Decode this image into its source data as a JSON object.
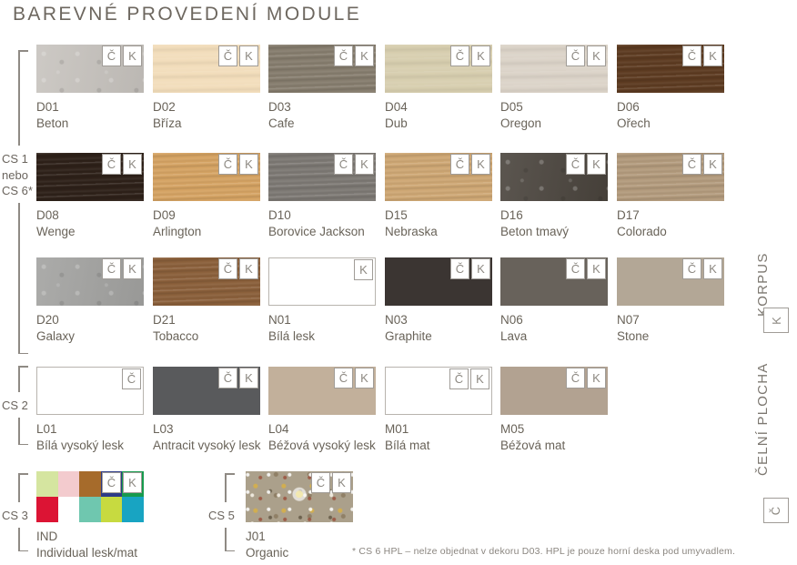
{
  "title": "BAREVNÉ PROVEDENÍ MODULE",
  "legend": {
    "korpus_label": "KORPUS",
    "korpus_badge": "K",
    "front_label": "ČELNÍ PLOCHA",
    "front_badge": "Č"
  },
  "groups": {
    "cs1": {
      "lines": [
        "CS 1",
        "nebo",
        "CS 6*"
      ]
    },
    "cs2": {
      "lines": [
        "CS 2"
      ]
    },
    "cs3": {
      "lines": [
        "CS 3"
      ]
    },
    "cs5": {
      "lines": [
        "CS 5"
      ]
    }
  },
  "rows": [
    {
      "swatches": [
        {
          "code": "D01",
          "name": "Beton",
          "badges": [
            "Č",
            "K"
          ],
          "color": "#c7c3be",
          "texture": "concrete"
        },
        {
          "code": "D02",
          "name": "Bříza",
          "badges": [
            "Č",
            "K"
          ],
          "color": "#f2ddbb",
          "texture": "wood-soft"
        },
        {
          "code": "D03",
          "name": "Cafe",
          "badges": [
            "Č",
            "K"
          ],
          "color": "#867d6e",
          "texture": "wood"
        },
        {
          "code": "D04",
          "name": "Dub",
          "badges": [
            "Č",
            "K"
          ],
          "color": "#d7ceaf",
          "texture": "wood-soft"
        },
        {
          "code": "D05",
          "name": "Oregon",
          "badges": [
            "Č",
            "K"
          ],
          "color": "#dbd3c8",
          "texture": "wood-soft"
        },
        {
          "code": "D06",
          "name": "Ořech",
          "badges": [
            "Č",
            "K"
          ],
          "color": "#5d3b21",
          "texture": "wood"
        }
      ]
    },
    {
      "swatches": [
        {
          "code": "D08",
          "name": "Wenge",
          "badges": [
            "Č",
            "K"
          ],
          "color": "#2e2119",
          "texture": "wood"
        },
        {
          "code": "D09",
          "name": "Arlington",
          "badges": [
            "Č",
            "K"
          ],
          "color": "#d5a363",
          "texture": "wood"
        },
        {
          "code": "D10",
          "name": "Borovice Jackson",
          "badges": [
            "Č",
            "K"
          ],
          "color": "#7d7974",
          "texture": "wood"
        },
        {
          "code": "D15",
          "name": "Nebraska",
          "badges": [
            "Č",
            "K"
          ],
          "color": "#cea774",
          "texture": "wood"
        },
        {
          "code": "D16",
          "name": "Beton tmavý",
          "badges": [
            "Č",
            "K"
          ],
          "color": "#49433c",
          "texture": "concrete"
        },
        {
          "code": "D17",
          "name": "Colorado",
          "badges": [
            "Č",
            "K"
          ],
          "color": "#b39b7d",
          "texture": "wood"
        }
      ]
    },
    {
      "swatches": [
        {
          "code": "D20",
          "name": "Galaxy",
          "badges": [
            "Č",
            "K"
          ],
          "color": "#a2a2a0",
          "texture": "concrete"
        },
        {
          "code": "D21",
          "name": "Tobacco",
          "badges": [
            "Č",
            "K"
          ],
          "color": "#8b603b",
          "texture": "wood"
        },
        {
          "code": "N01",
          "name": "Bílá lesk",
          "badges": [
            "K"
          ],
          "color": "#ffffff",
          "texture": "white"
        },
        {
          "code": "N03",
          "name": "Graphite",
          "badges": [
            "Č",
            "K"
          ],
          "color": "#3b3532",
          "texture": "flat"
        },
        {
          "code": "N06",
          "name": "Lava",
          "badges": [
            "Č",
            "K"
          ],
          "color": "#68625b",
          "texture": "flat"
        },
        {
          "code": "N07",
          "name": "Stone",
          "badges": [
            "Č",
            "K"
          ],
          "color": "#b3a796",
          "texture": "flat"
        }
      ]
    },
    {
      "swatches": [
        {
          "code": "L01",
          "name": "Bílá vysoký lesk",
          "badges": [
            "Č"
          ],
          "color": "#ffffff",
          "texture": "white"
        },
        {
          "code": "L03",
          "name": "Antracit vysoký lesk",
          "badges": [
            "Č",
            "K"
          ],
          "color": "#595a5c",
          "texture": "flat"
        },
        {
          "code": "L04",
          "name": "Béžová vysoký lesk",
          "badges": [
            "Č",
            "K"
          ],
          "color": "#c2b09b",
          "texture": "flat"
        },
        {
          "code": "M01",
          "name": "Bílá mat",
          "badges": [
            "Č",
            "K"
          ],
          "color": "#ffffff",
          "texture": "white"
        },
        {
          "code": "M05",
          "name": "Béžová mat",
          "badges": [
            "Č",
            "K"
          ],
          "color": "#b2a291",
          "texture": "flat"
        }
      ]
    },
    {
      "swatches": [
        {
          "code": "IND",
          "name": "Individual lesk/mat",
          "badges": [
            "Č",
            "K"
          ],
          "color": "#ffffff",
          "texture": "grid"
        },
        {
          "code": "J01",
          "name": "Organic",
          "badges": [
            "Č",
            "K"
          ],
          "color": "#aba08b",
          "texture": "organic"
        }
      ]
    }
  ],
  "ind_palette": {
    "top": [
      "#d5e5a0",
      "#f3cbce",
      "#a66b2b",
      "#2d3a87",
      "#169a4d"
    ],
    "bottom": [
      "#dc1434",
      "#ffffff",
      "#6fc7af",
      "#c7da40",
      "#18a4c2"
    ]
  },
  "footnote": "* CS 6 HPL –  nelze objednat v dekoru D03. HPL je pouze horní deska pod umyvadlem.",
  "colors": {
    "text": "#6b655e",
    "bracket_line": "#8f8a84",
    "badge_border": "#a09c97",
    "badge_letter": "#8d8982"
  }
}
